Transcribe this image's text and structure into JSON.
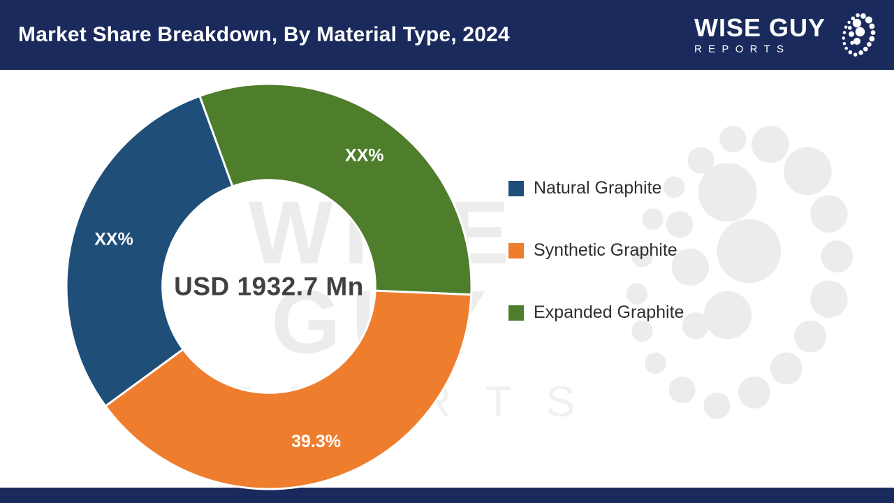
{
  "header": {
    "title": "Market Share Breakdown, By Material Type, 2024",
    "brand_line1": "WISE GUY",
    "brand_line2": "REPORTS"
  },
  "watermark": {
    "line1": "WISE GUY",
    "line2": "REPORTS"
  },
  "chart_data": {
    "type": "pie",
    "subtype": "donut",
    "title": "Market Share Breakdown, By Material Type, 2024",
    "center_label": "USD 1932.7 Mn",
    "start_angle_deg": -20,
    "donut_inner_ratio": 0.525,
    "segments": [
      {
        "label": "Expanded Graphite",
        "value": 31.2,
        "display": "XX%",
        "color": "#4e7d2c"
      },
      {
        "label": "Synthetic Graphite",
        "value": 39.3,
        "display": "39.3%",
        "color": "#ef7d2e"
      },
      {
        "label": "Natural Graphite",
        "value": 29.5,
        "display": "XX%",
        "color": "#1f4e79"
      }
    ],
    "legend": [
      {
        "label": "Natural Graphite",
        "color": "#1f4e79"
      },
      {
        "label": "Synthetic Graphite",
        "color": "#ef7d2e"
      },
      {
        "label": "Expanded Graphite",
        "color": "#4e7d2c"
      }
    ],
    "legend_position": "right"
  },
  "colors": {
    "header_bg": "#1a2a5c",
    "footer_bg": "#1a2a5c",
    "center_text": "#414141"
  }
}
